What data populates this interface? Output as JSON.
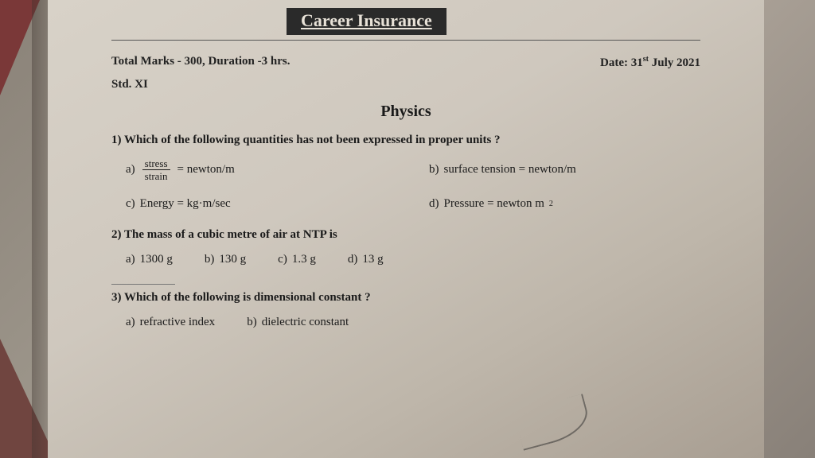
{
  "header": {
    "banner": "Career Insurance",
    "marks_duration": "Total Marks - 300, Duration -3 hrs.",
    "date_label": "Date: 31",
    "date_sup": "st",
    "date_rest": " July 2021",
    "std": "Std. XI",
    "subject": "Physics"
  },
  "questions": [
    {
      "num": "1)",
      "text": "Which of the following quantities has not been expressed in proper units ?",
      "layout": "grid",
      "options": [
        {
          "label": "a)",
          "type": "frac",
          "frac_num": "stress",
          "frac_den": "strain",
          "rest": "= newton/m"
        },
        {
          "label": "b)",
          "type": "plain",
          "text": "surface tension = newton/m"
        },
        {
          "label": "c)",
          "type": "plain",
          "text": "Energy = kg·m/sec"
        },
        {
          "label": "d)",
          "type": "sup",
          "before": "Pressure = newton m",
          "sup": "2"
        }
      ]
    },
    {
      "num": "2)",
      "text": "The mass of a cubic metre of air at NTP is",
      "layout": "row",
      "options": [
        {
          "label": "a)",
          "type": "plain",
          "text": "1300 g"
        },
        {
          "label": "b)",
          "type": "plain",
          "text": "130 g"
        },
        {
          "label": "c)",
          "type": "plain",
          "text": "1.3 g"
        },
        {
          "label": "d)",
          "type": "plain",
          "text": "13 g"
        }
      ]
    },
    {
      "num": "3)",
      "text": "Which of the following is dimensional constant ?",
      "layout": "row",
      "options": [
        {
          "label": "a)",
          "type": "plain",
          "text": "refractive index"
        },
        {
          "label": "b)",
          "type": "plain",
          "text": "dielectric constant"
        }
      ]
    }
  ]
}
